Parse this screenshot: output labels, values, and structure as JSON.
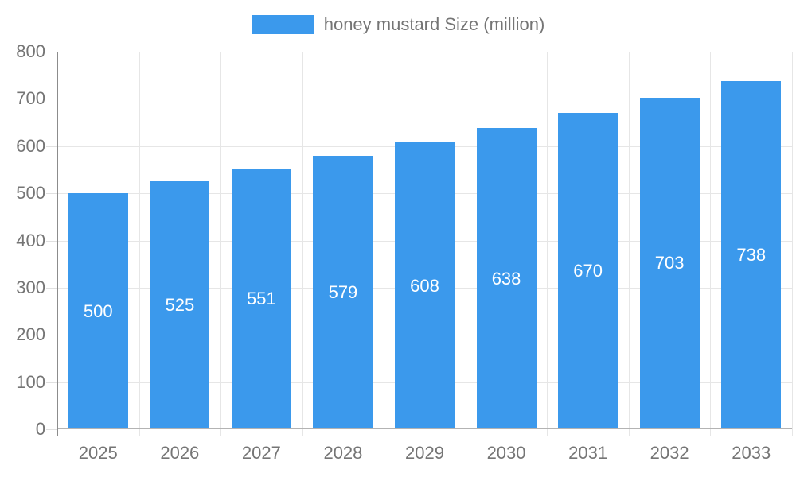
{
  "page": {
    "background": "#ffffff"
  },
  "legend": {
    "label": "honey mustard Size (million)"
  },
  "chart_data": {
    "type": "bar",
    "title": "",
    "categories": [
      "2025",
      "2026",
      "2027",
      "2028",
      "2029",
      "2030",
      "2031",
      "2032",
      "2033"
    ],
    "series": [
      {
        "name": "honey mustard Size (million)",
        "values": [
          500,
          525,
          551,
          579,
          608,
          638,
          670,
          703,
          738
        ]
      }
    ],
    "xlabel": "",
    "ylabel": "",
    "ylim": [
      0,
      800
    ],
    "yticks": [
      0,
      100,
      200,
      300,
      400,
      500,
      600,
      700,
      800
    ],
    "grid": true,
    "legend_position": "top",
    "bar_value_labels": true
  },
  "colors": {
    "bar": "#3B99EC",
    "bar_label": "#ffffff",
    "axis_text": "#757575",
    "grid_line": "#e6e6e6",
    "tick_line": "#e0e0e0",
    "y_axis_line": "#8c8c8c",
    "x_axis_line": "#b3b3b3"
  }
}
